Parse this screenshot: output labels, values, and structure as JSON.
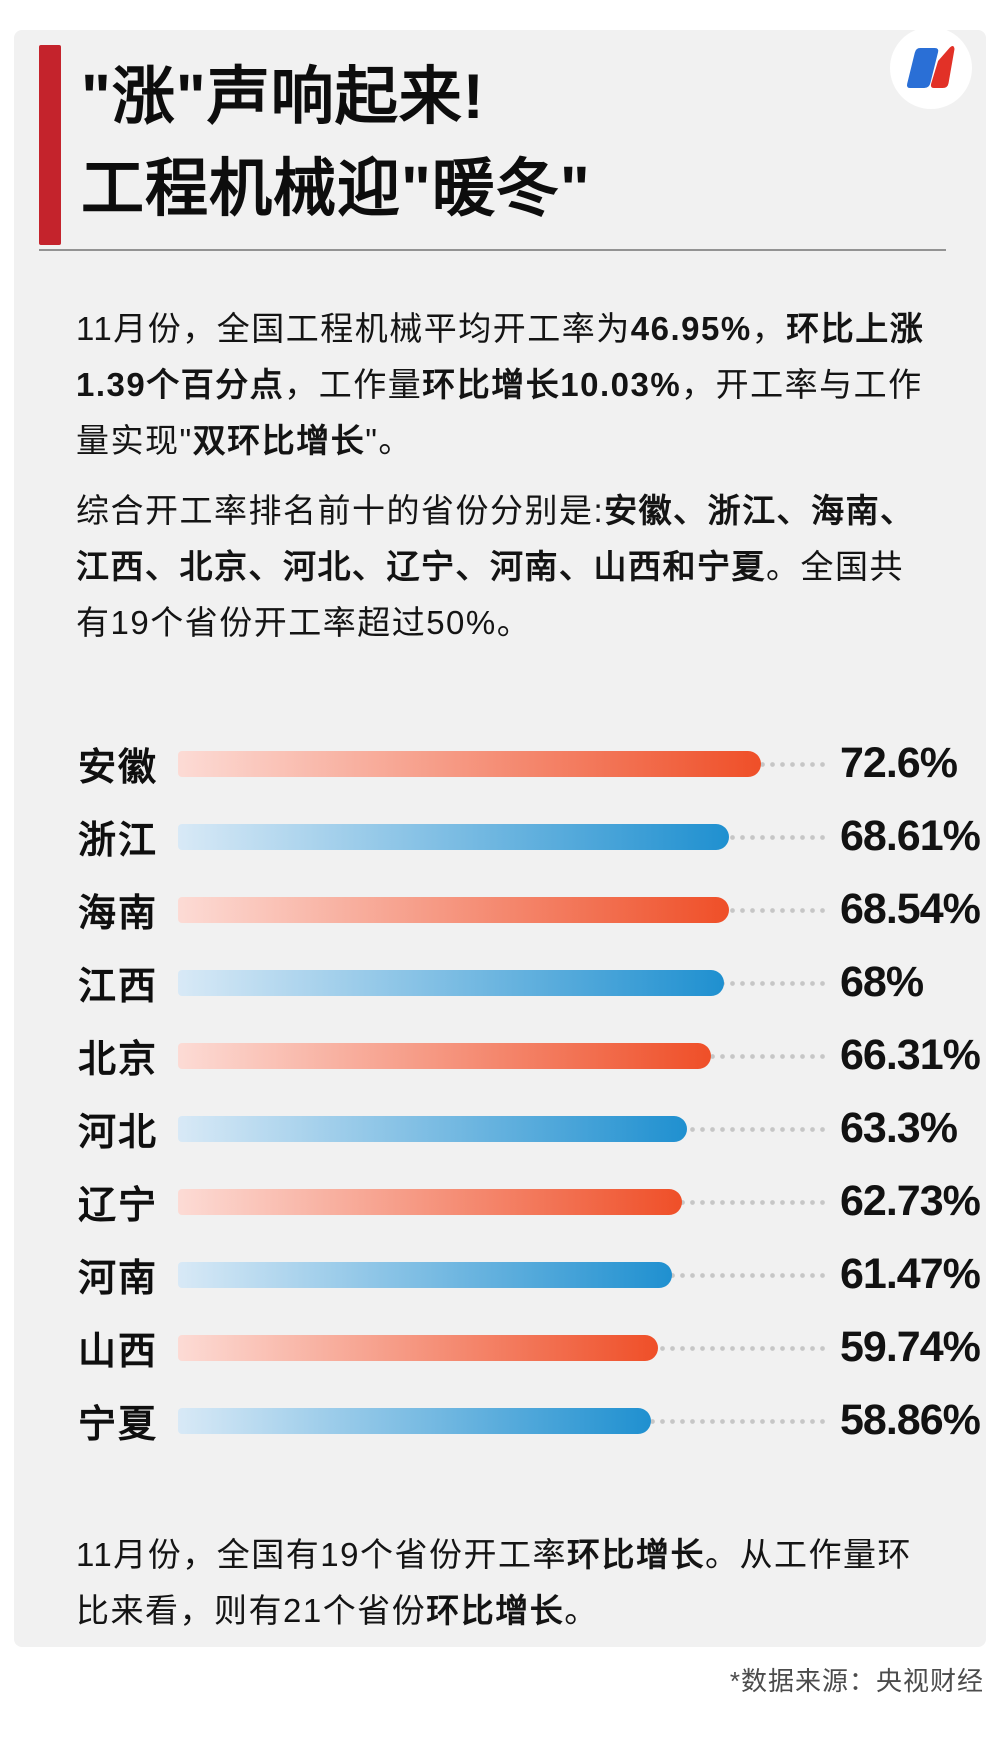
{
  "header": {
    "title_line1": "\"涨\"声响起来!",
    "title_line2": "工程机械迎\"暖冬\"",
    "accent_color": "#c4232c",
    "logo": {
      "icon": "nbd-logo",
      "blue": "#2a6fd6",
      "red": "#e23127"
    }
  },
  "paragraphs": {
    "p1": [
      {
        "t": "11月份，全国工程机械平均开工率为",
        "b": false
      },
      {
        "t": "46.95%",
        "b": true
      },
      {
        "t": "，",
        "b": false
      },
      {
        "t": "环比上涨1.39个百分点",
        "b": true
      },
      {
        "t": "，工作量",
        "b": false
      },
      {
        "t": "环比增长10.03%",
        "b": true
      },
      {
        "t": "，开工率与工作量实现\"",
        "b": false
      },
      {
        "t": "双环比增长",
        "b": true
      },
      {
        "t": "\"。",
        "b": false
      }
    ],
    "p2": [
      {
        "t": "综合开工率排名前十的省份分别是:",
        "b": false
      },
      {
        "t": "安徽、浙江、海南、江西、北京、河北、辽宁、河南、山西和宁夏",
        "b": true
      },
      {
        "t": "。全国共有19个省份开工率超过50%。",
        "b": false
      }
    ],
    "p3": [
      {
        "t": "11月份，全国有19个省份开工率",
        "b": false
      },
      {
        "t": "环比增长",
        "b": true
      },
      {
        "t": "。从工作量环比来看，则有21个省份",
        "b": false
      },
      {
        "t": "环比增长",
        "b": true
      },
      {
        "t": "。",
        "b": false
      }
    ]
  },
  "chart_data": {
    "type": "bar",
    "orientation": "horizontal",
    "categories": [
      "安徽",
      "浙江",
      "海南",
      "江西",
      "北京",
      "河北",
      "辽宁",
      "河南",
      "山西",
      "宁夏"
    ],
    "values": [
      72.6,
      68.61,
      68.54,
      68,
      66.31,
      63.3,
      62.73,
      61.47,
      59.74,
      58.86
    ],
    "labels": [
      "72.6%",
      "68.61%",
      "68.54%",
      "68%",
      "66.31%",
      "63.3%",
      "62.73%",
      "61.47%",
      "59.74%",
      "58.86%"
    ],
    "xlim": [
      0,
      82.4
    ],
    "grid": false,
    "legend": "none",
    "value_label_position": "right",
    "colors": {
      "orange_gradient": [
        "#fcdbd5",
        "#ef4f28"
      ],
      "blue_gradient": [
        "#d8e9f6",
        "#1f90d0"
      ],
      "dot_leader": "#c6c6c6"
    }
  },
  "footer": {
    "source": "*数据来源：央视财经"
  }
}
